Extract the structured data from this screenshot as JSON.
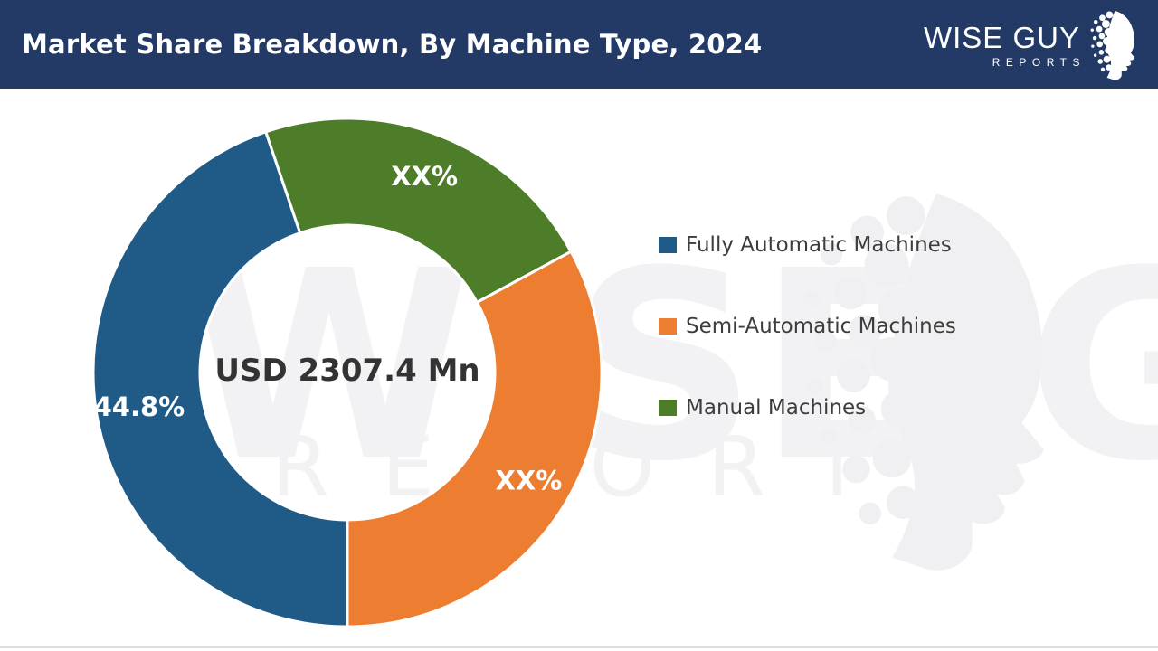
{
  "header": {
    "title": "Market Share Breakdown, By Machine Type, 2024",
    "logo": {
      "name": "WISE GUY",
      "subtitle": "REPORTS"
    }
  },
  "watermark": {
    "line1": "WISE GUY",
    "line2": "REPORTS"
  },
  "chart_data": {
    "type": "pie",
    "variant": "donut",
    "title": "Market Share Breakdown, By Machine Type, 2024",
    "center_label": "USD 2307.4 Mn",
    "donut_hole_ratio": 0.58,
    "start_angle_screen_deg": 90,
    "clockwise": true,
    "draw_order": [
      0,
      2,
      1
    ],
    "legend_position": "right",
    "segments": [
      {
        "label": "Fully Automatic Machines",
        "display_value": "44.8%",
        "value_pct": 44.8,
        "color": "#205a86"
      },
      {
        "label": "Semi-Automatic Machines",
        "display_value": "XX%",
        "value_pct": 32.9,
        "color": "#ed7d31"
      },
      {
        "label": "Manual Machines",
        "display_value": "XX%",
        "value_pct": 22.3,
        "color": "#4d7d28"
      }
    ]
  },
  "colors": {
    "header_bg": "#233a66",
    "accent_blue": "#205a86",
    "accent_orange": "#ed7d31",
    "accent_green": "#4d7d28",
    "legend_text": "#3d3d3d",
    "center_text": "#333333",
    "watermark": "#f2f2f4",
    "watermark_face": "#f0f0f2",
    "bottom_rule": "#dcdcdc"
  }
}
